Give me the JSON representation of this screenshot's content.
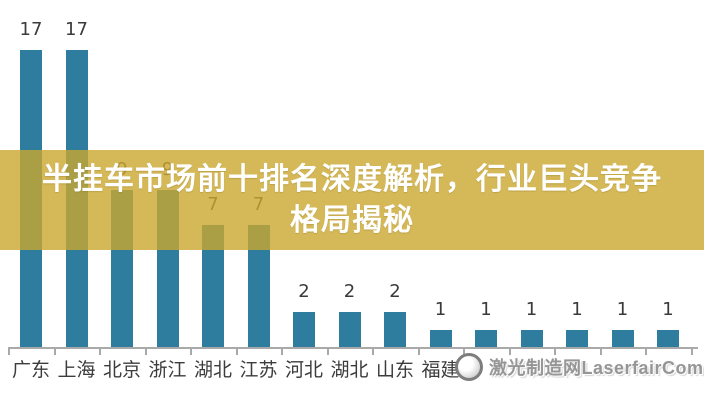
{
  "chart_data": {
    "type": "bar",
    "categories": [
      "广东",
      "上海",
      "北京",
      "浙江",
      "湖北",
      "江苏",
      "河北",
      "湖北",
      "山东",
      "福建",
      "",
      "",
      "",
      "",
      ""
    ],
    "values": [
      17,
      17,
      9,
      9,
      7,
      7,
      2,
      2,
      2,
      1,
      1,
      1,
      1,
      1,
      1
    ],
    "title": "",
    "xlabel": "",
    "ylabel": "",
    "ylim": [
      0,
      18
    ],
    "grid": false,
    "legend": null,
    "bar_color": "#2f7d9e",
    "axis_color": "#a9a9a9",
    "value_label_color": "#3a3a3a",
    "category_label_color": "#3c3c3c"
  },
  "banner": {
    "line1": "半挂车市场前十排名深度解析，行业巨头竞争",
    "line2": "格局揭秘",
    "bg_color": "#cba730",
    "text_color": "#ffffff"
  },
  "watermark": {
    "text": "激光制造网LaserfairCom",
    "color": "#969696"
  }
}
